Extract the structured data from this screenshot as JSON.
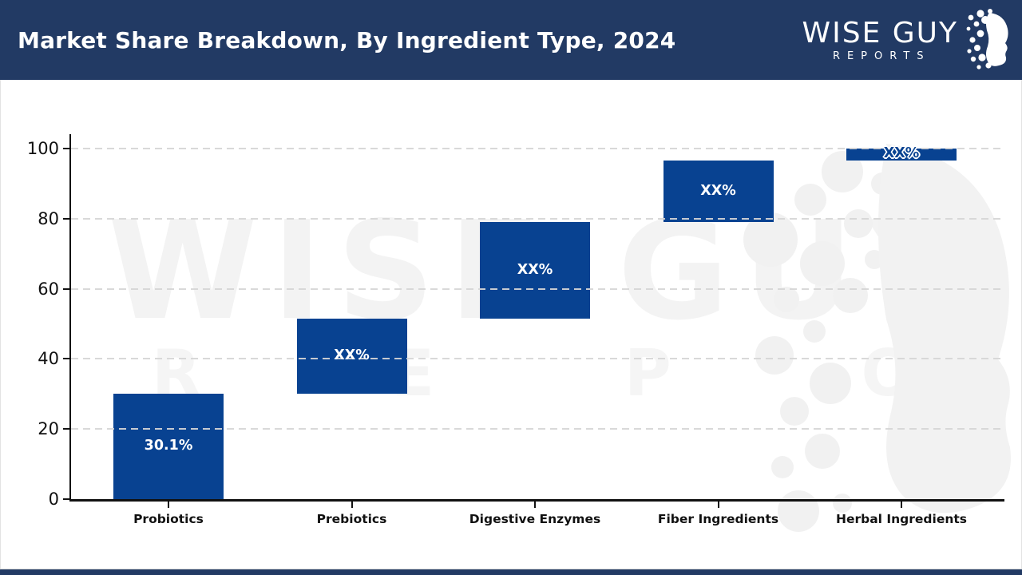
{
  "header": {
    "title": "Market Share Breakdown, By Ingredient Type, 2024",
    "logo": {
      "line1": "WISE GUY",
      "line2": "REPORTS"
    }
  },
  "watermark": {
    "line1": "WISE GUY",
    "line2": "REPORTS"
  },
  "colors": {
    "header_bg": "#223a64",
    "footer_bg": "#223a64",
    "bar": "#084291",
    "grid": "#d6d6d6",
    "axis": "#111111",
    "bar_label_inside": "#ffffff",
    "watermark": "#f3f3f3"
  },
  "chart_data": {
    "type": "bar",
    "subtype": "waterfall",
    "title": "Market Share Breakdown, By Ingredient Type, 2024",
    "categories": [
      "Probiotics",
      "Prebiotics",
      "Digestive Enzymes",
      "Fiber Ingredients",
      "Herbal Ingredients"
    ],
    "segments": [
      {
        "category": "Probiotics",
        "start": 0,
        "end": 30.1,
        "label": "30.1%",
        "label_position": "inside"
      },
      {
        "category": "Prebiotics",
        "start": 30.1,
        "end": 51.5,
        "label": "XX%",
        "label_position": "inside"
      },
      {
        "category": "Digestive Enzymes",
        "start": 51.5,
        "end": 79.0,
        "label": "XX%",
        "label_position": "inside"
      },
      {
        "category": "Fiber Ingredients",
        "start": 79.0,
        "end": 96.6,
        "label": "XX%",
        "label_position": "inside"
      },
      {
        "category": "Herbal Ingredients",
        "start": 96.6,
        "end": 100,
        "label": "XX%",
        "label_position": "straddle"
      }
    ],
    "xlabel": "",
    "ylabel": "",
    "ylim": [
      0,
      105
    ],
    "yticks": [
      0,
      20,
      40,
      60,
      80,
      100
    ],
    "grid": "horizontal-dashed",
    "legend": null
  }
}
